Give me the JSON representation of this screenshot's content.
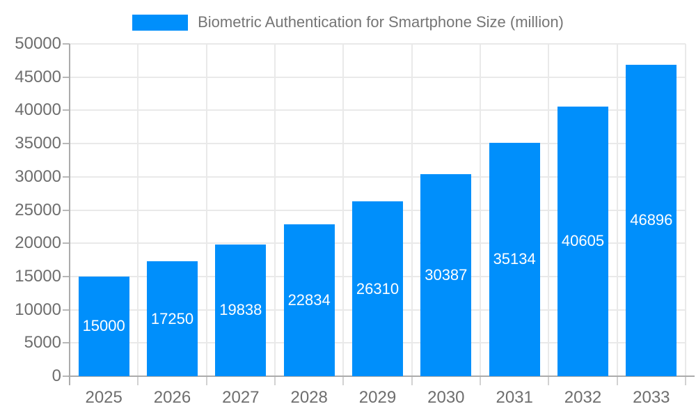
{
  "legend": {
    "label": "Biometric Authentication for Smartphone Size (million)",
    "swatch_color": "#008FFB"
  },
  "chart_data": {
    "type": "bar",
    "title": "Biometric Authentication for Smartphone Size (million)",
    "series": [
      {
        "name": "Biometric Authentication for Smartphone Size (million)",
        "values": [
          15000,
          17250,
          19838,
          22834,
          26310,
          30387,
          35134,
          40605,
          46896
        ]
      }
    ],
    "categories": [
      "2025",
      "2026",
      "2027",
      "2028",
      "2029",
      "2030",
      "2031",
      "2032",
      "2033"
    ],
    "value_labels": [
      "15000",
      "17250",
      "19838",
      "22834",
      "26310",
      "30387",
      "35134",
      "40605",
      "46896"
    ],
    "xlabel": "",
    "ylabel": "",
    "ylim": [
      0,
      50000
    ],
    "ytick_step": 5000,
    "ytick_labels": [
      "0",
      "5000",
      "10000",
      "15000",
      "20000",
      "25000",
      "30000",
      "35000",
      "40000",
      "45000",
      "50000"
    ],
    "grid": true,
    "legend_position": "top",
    "colors": {
      "bar": "#008FFB",
      "value_label": "#FFFFFF",
      "axis_text": "#6E6E6E",
      "legend_text": "#757575",
      "grid": "#E9E9E9",
      "axis_line": "#ABABAB",
      "background": "#FFFFFF"
    }
  }
}
